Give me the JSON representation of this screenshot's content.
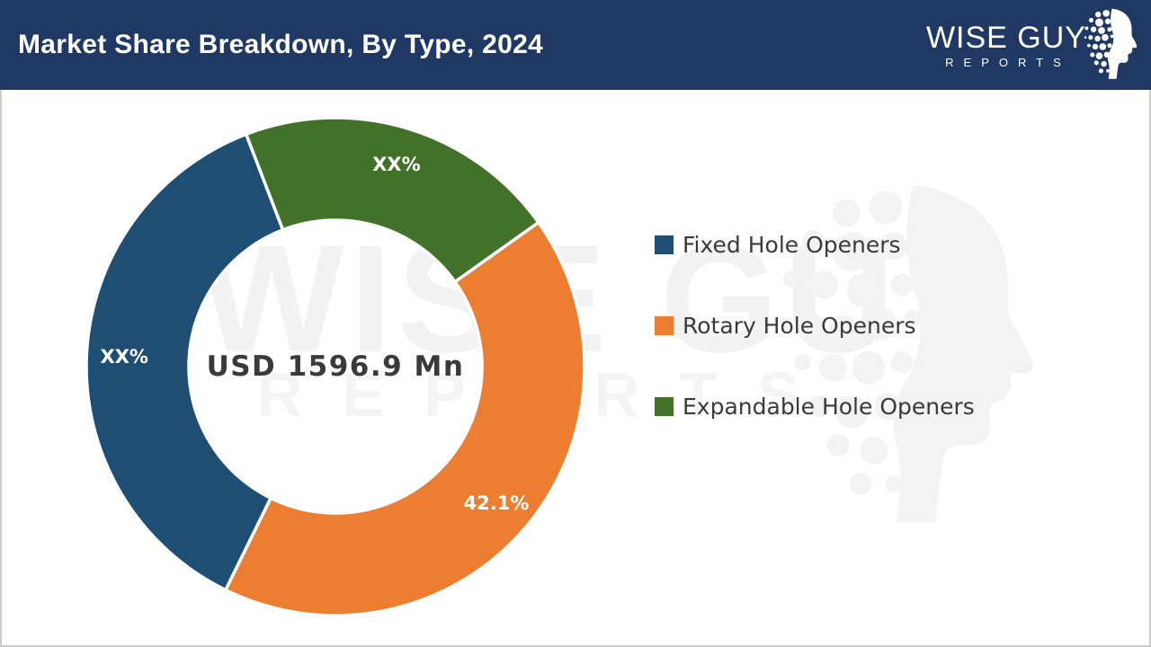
{
  "header": {
    "title": "Market Share Breakdown, By Type, 2024",
    "logo": {
      "line1": "WISE GUY",
      "line2": "REPORTS"
    },
    "bg_color": "#203864"
  },
  "watermark": {
    "line1": "WISE GUY",
    "line2": "REPORTS"
  },
  "chart_data": {
    "type": "pie",
    "subtype": "donut",
    "title": "Market Share Breakdown, By Type, 2024",
    "center_label": "USD 1596.9 Mn",
    "start_angle_deg": 111,
    "direction": "counterclockwise",
    "legend_position": "right",
    "segments": [
      {
        "label": "Fixed Hole Openers",
        "display_value": "XX%",
        "value": 36.9,
        "color": "#1F4E74"
      },
      {
        "label": "Rotary Hole Openers",
        "display_value": "42.1%",
        "value": 42.1,
        "color": "#ED7D31"
      },
      {
        "label": "Expandable Hole Openers",
        "display_value": "XX%",
        "value": 21.0,
        "color": "#427229"
      }
    ]
  },
  "colors": {
    "header_bg": "#203864",
    "frame_border": "#cccccc",
    "center_text": "#3a3a3a",
    "legend_text": "#3a3a3a",
    "watermark": "#f2f2f2",
    "slice_label_text": "#ffffff"
  }
}
